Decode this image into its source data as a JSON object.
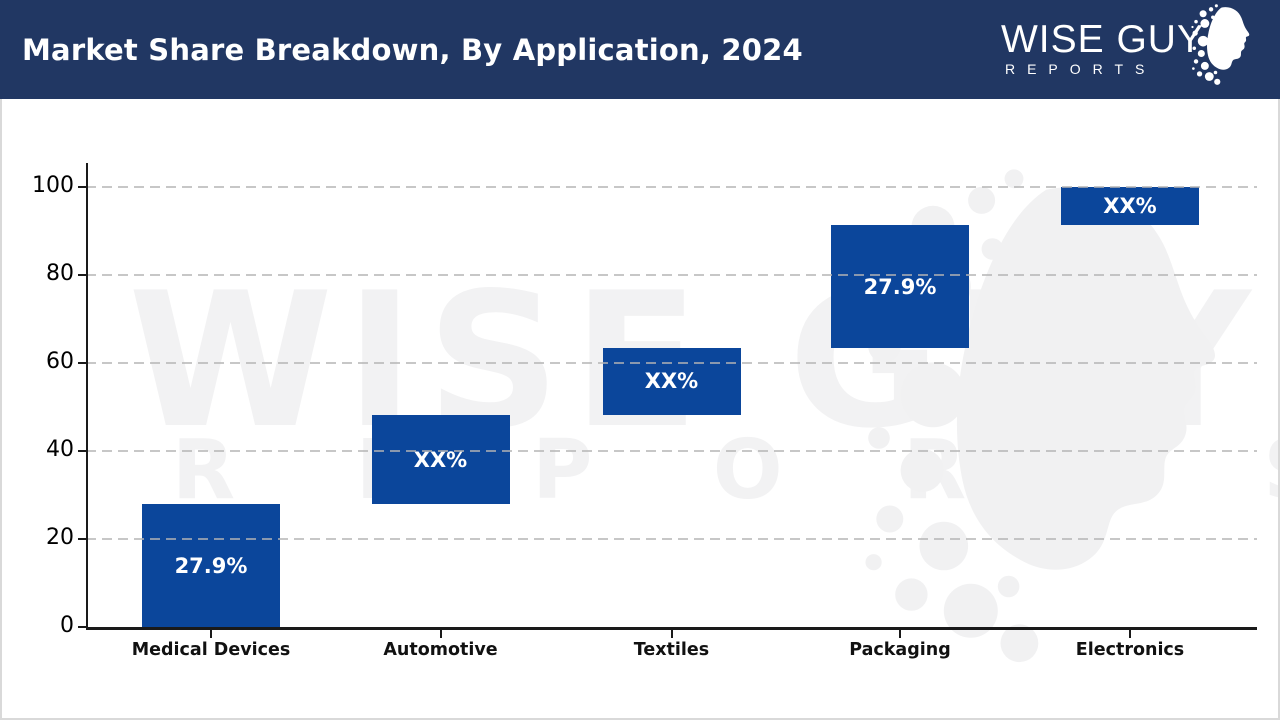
{
  "header": {
    "title": "Market Share Breakdown, By Application, 2024"
  },
  "logo": {
    "primary": "WISE GUY",
    "secondary": "REPORTS"
  },
  "watermark": {
    "primary": "WISE GUY",
    "secondary": "R E P O R T S"
  },
  "colors": {
    "header_bg": "#213763",
    "bar": "#0b469b",
    "bar_label": "#ffffff",
    "axis": "#1a1a1a",
    "gridline": "#d9d9d9",
    "tick_label": "#000000",
    "watermark": "#f2f2f3"
  },
  "chart_data": {
    "type": "bar",
    "subtype": "waterfall (floating stacked-step bars)",
    "title": "Market Share Breakdown, By Application, 2024",
    "xlabel": "",
    "ylabel": "",
    "ylim": [
      0,
      100
    ],
    "yticks": [
      0,
      20,
      40,
      60,
      80,
      100
    ],
    "grid": true,
    "legend": false,
    "categories": [
      "Medical Devices",
      "Automotive",
      "Textiles",
      "Packaging",
      "Electronics"
    ],
    "bars": [
      {
        "category": "Medical Devices",
        "start": 0,
        "end": 27.9,
        "value": 27.9,
        "label": "27.9%"
      },
      {
        "category": "Automotive",
        "start": 27.9,
        "end": 48.2,
        "value": 20.3,
        "label": "XX%"
      },
      {
        "category": "Textiles",
        "start": 48.2,
        "end": 63.4,
        "value": 15.2,
        "label": "XX%"
      },
      {
        "category": "Packaging",
        "start": 63.4,
        "end": 91.3,
        "value": 27.9,
        "label": "27.9%"
      },
      {
        "category": "Electronics",
        "start": 91.3,
        "end": 100,
        "value": 8.7,
        "label": "XX%"
      }
    ]
  }
}
